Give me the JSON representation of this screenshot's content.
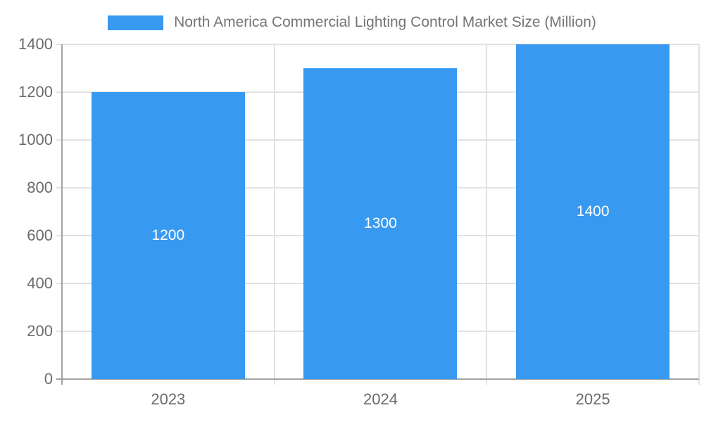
{
  "chart_data": {
    "type": "bar",
    "title": "North America Commercial Lighting Control Market Size (Million)",
    "categories": [
      "2023",
      "2024",
      "2025"
    ],
    "values": [
      1200,
      1300,
      1400
    ],
    "data_labels": [
      "1200",
      "1300",
      "1400"
    ],
    "xlabel": "",
    "ylabel": "",
    "ylim": [
      0,
      1400
    ],
    "yticks": [
      0,
      200,
      400,
      600,
      800,
      1000,
      1200,
      1400
    ],
    "legend_position": "top",
    "grid": true
  },
  "colors": {
    "bar": "#3899f0",
    "bar_label_text": "#ffffff",
    "tick_label_text": "#6b6b6b",
    "legend_text": "#757575",
    "gridline": "#e2e2e2",
    "axis_line": "#a3a3a3",
    "background": "#ffffff"
  }
}
